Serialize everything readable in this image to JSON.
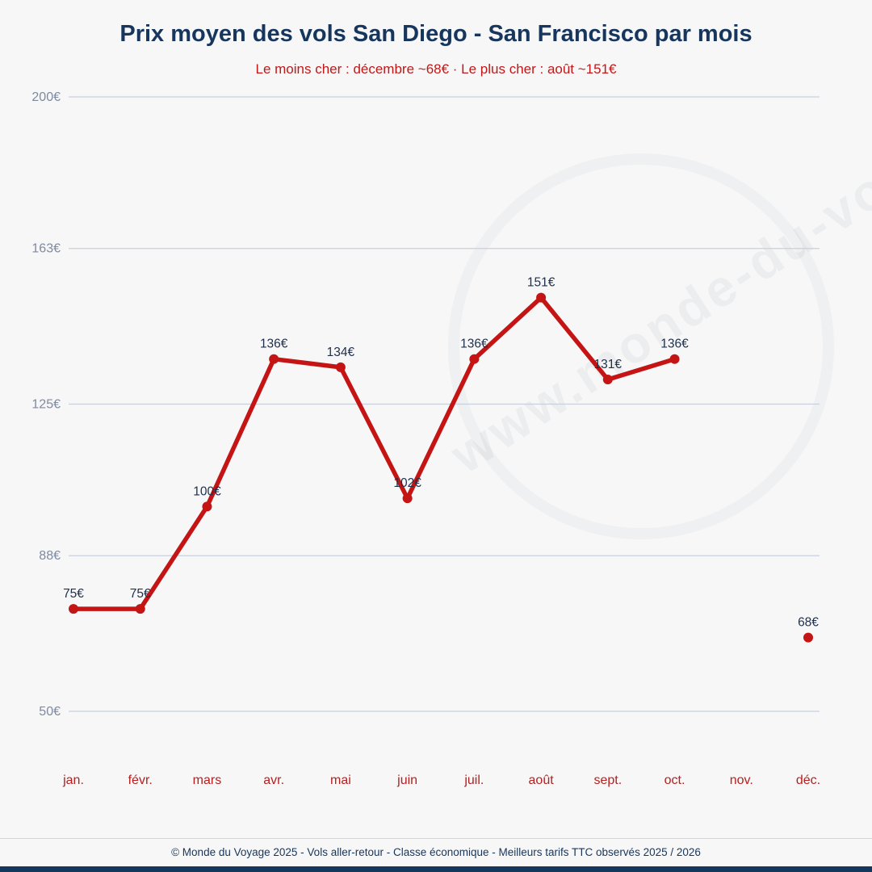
{
  "title": "Prix moyen des vols San Diego - San Francisco par mois",
  "subtitle": "Le moins cher : décembre ~68€ · Le plus cher : août ~151€",
  "watermark": "www.monde-du-voyage.com",
  "footer": "© Monde du Voyage 2025 - Vols aller-retour - Classe économique - Meilleurs tarifs TTC observés 2025 / 2026",
  "chart_data": {
    "type": "line",
    "title": "Prix moyen des vols San Diego - San Francisco par mois",
    "subtitle": "Le moins cher : décembre ~68€ · Le plus cher : août ~151€",
    "categories": [
      "jan.",
      "févr.",
      "mars",
      "avr.",
      "mai",
      "juin",
      "juil.",
      "août",
      "sept.",
      "oct.",
      "nov.",
      "déc."
    ],
    "values": [
      75,
      75,
      100,
      136,
      134,
      102,
      136,
      151,
      131,
      136,
      null,
      68
    ],
    "value_labels": [
      "75€",
      "75€",
      "100€",
      "136€",
      "134€",
      "102€",
      "136€",
      "151€",
      "131€",
      "136€",
      "",
      "68€"
    ],
    "y_ticks": [
      200,
      163,
      125,
      88,
      50
    ],
    "y_tick_labels": [
      "200€",
      "163€",
      "125€",
      "88€",
      "50€"
    ],
    "ylim": [
      50,
      200
    ],
    "grid": true,
    "legend": "none",
    "colors": {
      "line": "#c41414",
      "point": "#c41414",
      "grid": "#c8d0dc",
      "axis_text": "#7e8aa0",
      "month_text": "#b51f1f",
      "label_text": "#1e2f4d",
      "title": "#17365d",
      "subtitle": "#c01818"
    }
  }
}
